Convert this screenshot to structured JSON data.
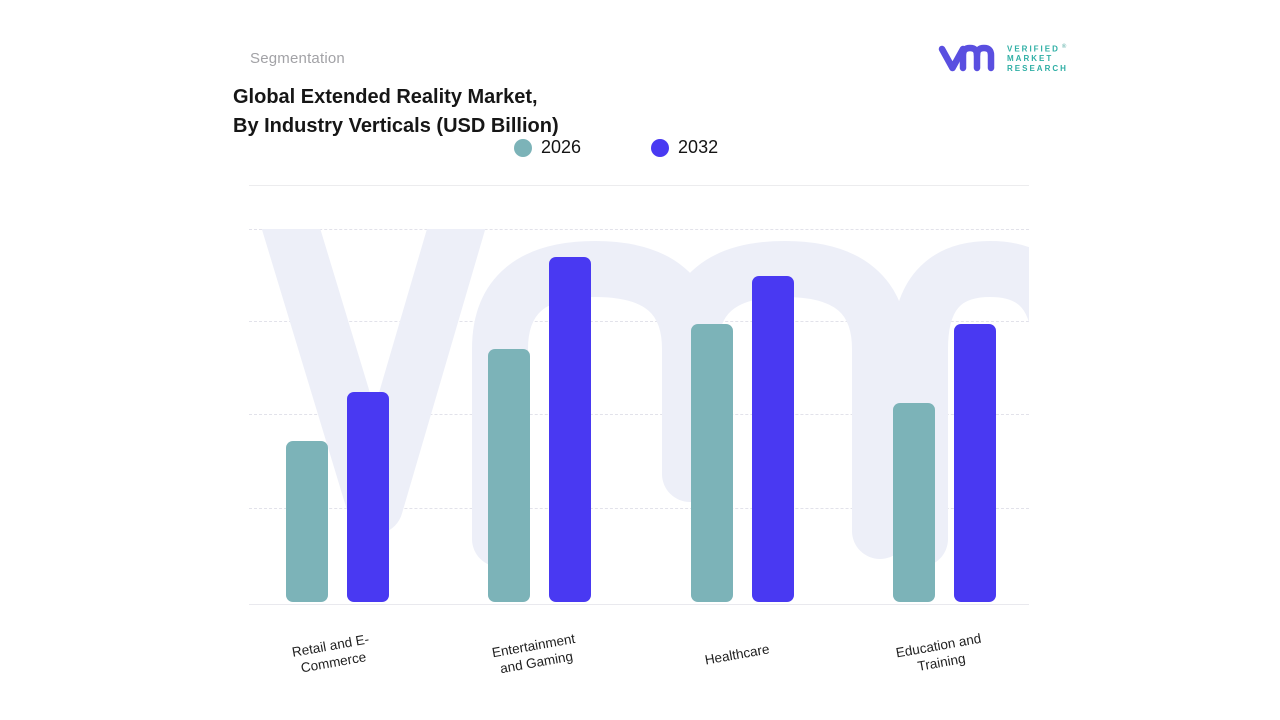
{
  "header": {
    "eyebrow": "Segmentation",
    "title_line1": "Global Extended Reality Market,",
    "title_line2": "By Industry Verticals (USD Billion)"
  },
  "logo": {
    "brand_lines": [
      "VERIFIED",
      "MARKET",
      "RESEARCH"
    ],
    "registered_mark": "®",
    "glyph_color": "#5a4fe0",
    "text_color": "#2fafa5"
  },
  "chart_data": {
    "type": "bar",
    "grouped": true,
    "title": "Global Extended Reality Market, By Industry Verticals (USD Billion)",
    "xlabel": "",
    "ylabel": "",
    "categories": [
      "Retail and E-Commerce",
      "Entertainment and Gaming",
      "Healthcare",
      "Education and Training"
    ],
    "category_label_lines": [
      [
        "Retail and E-",
        "Commerce"
      ],
      [
        "Entertainment",
        "and Gaming"
      ],
      [
        "Healthcare"
      ],
      [
        "Education and",
        "Training"
      ]
    ],
    "series": [
      {
        "name": "2026",
        "color": "#7cb3b8",
        "values": [
          43,
          67.5,
          74,
          53
        ]
      },
      {
        "name": "2032",
        "color": "#4939f2",
        "values": [
          56,
          92,
          87,
          74
        ]
      }
    ],
    "y_axis": {
      "tick_labels_visible": false,
      "ylim": [
        0,
        100
      ],
      "gridline_step": 25,
      "note": "y-axis unlabeled; values estimated from dashed gridline spacing"
    },
    "legend_position": "top",
    "grid": "horizontal-dashed",
    "watermark": "vmr-logo-watermark"
  },
  "colors": {
    "series_2026": "#7cb3b8",
    "series_2032": "#4939f2",
    "watermark": "#edeff8",
    "gridline": "#e2e2ea",
    "eyebrow_text": "#a2a2a6",
    "title_text": "#161616"
  }
}
